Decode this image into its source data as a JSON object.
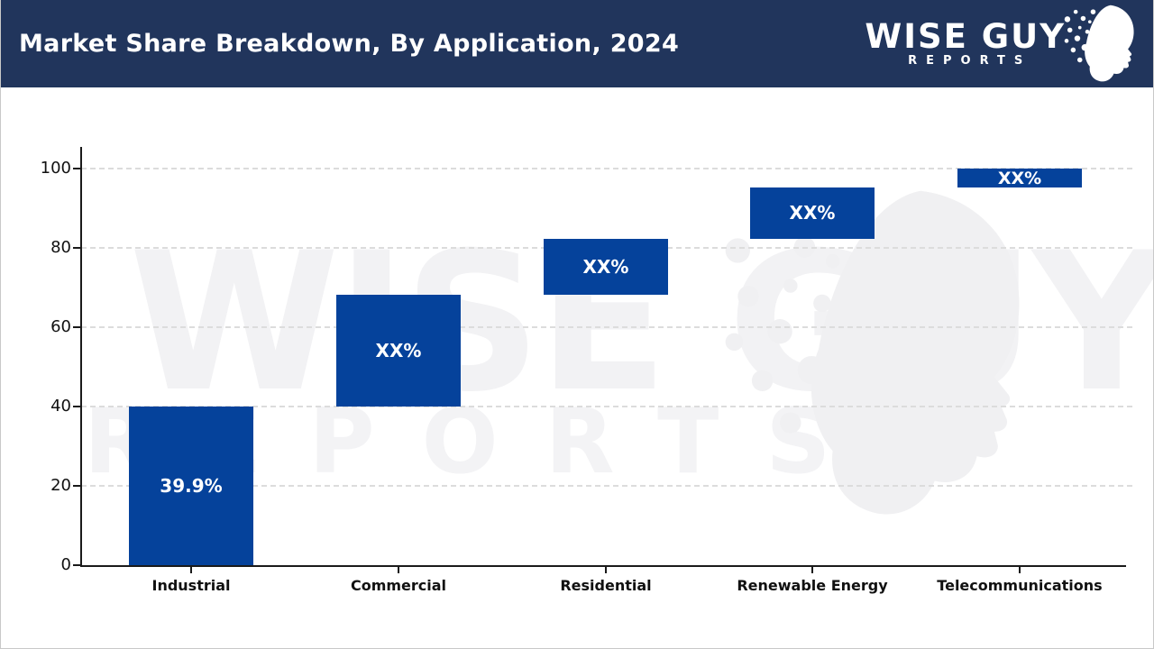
{
  "header": {
    "title": "Market Share Breakdown, By Application, 2024",
    "logo_line1": "WISE GUY",
    "logo_line2": "REPORTS",
    "bg_color": "#21355c"
  },
  "watermark": {
    "line1": "WISE GUY",
    "line2": "REPORTS"
  },
  "chart_data": {
    "type": "bar",
    "subtype": "waterfall",
    "title": "Market Share Breakdown, By Application, 2024",
    "categories": [
      "Industrial",
      "Commercial",
      "Residential",
      "Renewable Energy",
      "Telecommunications"
    ],
    "series": [
      {
        "name": "Market Share",
        "segments": [
          {
            "category": "Industrial",
            "start": 0,
            "end": 39.9,
            "label": "39.9%"
          },
          {
            "category": "Commercial",
            "start": 39.9,
            "end": 68.2,
            "label": "XX%"
          },
          {
            "category": "Residential",
            "start": 68.2,
            "end": 82.3,
            "label": "XX%"
          },
          {
            "category": "Renewable Energy",
            "start": 82.3,
            "end": 95.2,
            "label": "XX%"
          },
          {
            "category": "Telecommunications",
            "start": 95.2,
            "end": 100,
            "label": "XX%"
          }
        ]
      }
    ],
    "bar_color": "#05429b",
    "label_color": "#ffffff",
    "xlabel": "",
    "ylabel": "",
    "ylim": [
      0,
      105.5
    ],
    "yticks": [
      0,
      20,
      40,
      60,
      80,
      100
    ],
    "grid": "horizontal-dashed",
    "legend": "none"
  }
}
